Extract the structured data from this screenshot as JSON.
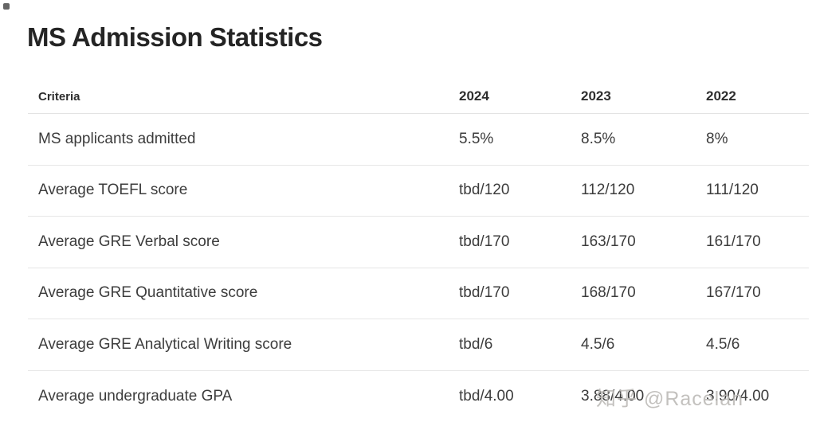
{
  "page": {
    "title": "MS Admission Statistics"
  },
  "table": {
    "columns": [
      "Criteria",
      "2024",
      "2023",
      "2022"
    ],
    "rows": [
      {
        "criteria": "MS applicants admitted",
        "y2024": "5.5%",
        "y2023": "8.5%",
        "y2022": "8%"
      },
      {
        "criteria": "Average TOEFL score",
        "y2024": "tbd/120",
        "y2023": "112/120",
        "y2022": "111/120"
      },
      {
        "criteria": "Average GRE Verbal score",
        "y2024": "tbd/170",
        "y2023": "163/170",
        "y2022": "161/170"
      },
      {
        "criteria": "Average GRE Quantitative score",
        "y2024": "tbd/170",
        "y2023": "168/170",
        "y2022": "167/170"
      },
      {
        "criteria": "Average GRE Analytical Writing score",
        "y2024": "tbd/6",
        "y2023": "4.5/6",
        "y2022": "4.5/6"
      },
      {
        "criteria": "Average undergraduate GPA",
        "y2024": "tbd/4.00",
        "y2023": "3.88/4.00",
        "y2022": "3.90/4.00"
      }
    ]
  },
  "watermark": {
    "text": "知乎 @Racelan"
  },
  "colors": {
    "title": "#242424",
    "header_text": "#2e2e2e",
    "body_text": "#3c3c3c",
    "divider": "#e3e3e3",
    "watermark": "#bdbbb8",
    "background": "#ffffff"
  }
}
